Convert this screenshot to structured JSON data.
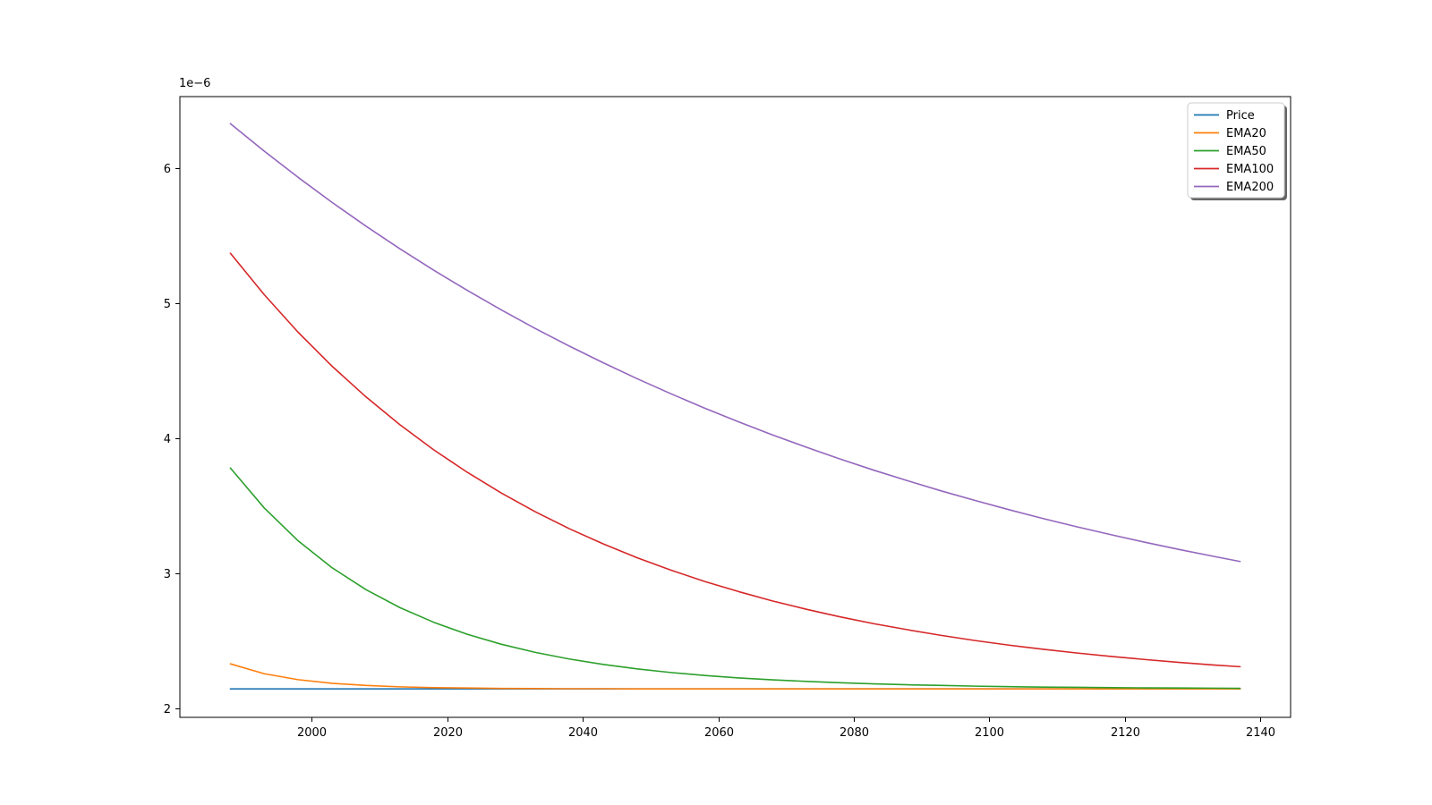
{
  "figure": {
    "background": "#ffffff",
    "axes_facecolor": "#ffffff",
    "spine_color": "#000000",
    "tick_color": "#000000",
    "legend_edge_color": "#cccccc",
    "legend_face_color": "#ffffff",
    "legend_shadow_color": "#666666"
  },
  "chart_data": {
    "type": "line",
    "title": "",
    "xlabel": "",
    "ylabel": "",
    "y_offset_label": "1e−6",
    "y_unit_scale": "1e-6",
    "grid": false,
    "xlim": [
      1980.55,
      2144.45
    ],
    "ylim": [
      1.934,
      6.53
    ],
    "x_ticks": [
      2000,
      2020,
      2040,
      2060,
      2080,
      2100,
      2120,
      2140
    ],
    "x_tick_labels": [
      "2000",
      "2020",
      "2040",
      "2060",
      "2080",
      "2100",
      "2120",
      "2140"
    ],
    "y_ticks": [
      2,
      3,
      4,
      5,
      6
    ],
    "y_tick_labels": [
      "2",
      "3",
      "4",
      "5",
      "6"
    ],
    "legend": {
      "position": "upper right",
      "shadow": true,
      "entries": [
        "Price",
        "EMA20",
        "EMA50",
        "EMA100",
        "EMA200"
      ]
    },
    "x": [
      1988,
      1993,
      1998,
      2003,
      2008,
      2013,
      2018,
      2023,
      2028,
      2033,
      2038,
      2043,
      2048,
      2053,
      2058,
      2063,
      2068,
      2073,
      2078,
      2083,
      2088,
      2093,
      2098,
      2103,
      2108,
      2113,
      2118,
      2123,
      2128,
      2133,
      2137
    ],
    "series": [
      {
        "name": "Price",
        "color": "#1f77b4",
        "values": [
          2.145,
          2.145,
          2.145,
          2.145,
          2.145,
          2.145,
          2.145,
          2.145,
          2.145,
          2.145,
          2.145,
          2.145,
          2.145,
          2.145,
          2.145,
          2.145,
          2.145,
          2.145,
          2.145,
          2.145,
          2.145,
          2.145,
          2.145,
          2.145,
          2.145,
          2.145,
          2.145,
          2.145,
          2.145,
          2.145,
          2.145
        ]
      },
      {
        "name": "EMA20",
        "color": "#ff7f0e",
        "values": [
          2.33,
          2.257,
          2.213,
          2.186,
          2.17,
          2.16,
          2.154,
          2.151,
          2.148,
          2.147,
          2.146,
          2.146,
          2.145,
          2.145,
          2.145,
          2.145,
          2.145,
          2.145,
          2.145,
          2.145,
          2.145,
          2.145,
          2.145,
          2.145,
          2.145,
          2.145,
          2.145,
          2.145,
          2.145,
          2.145,
          2.145
        ]
      },
      {
        "name": "EMA50",
        "color": "#2ca02c",
        "values": [
          3.78,
          3.484,
          3.241,
          3.042,
          2.88,
          2.747,
          2.638,
          2.548,
          2.475,
          2.415,
          2.366,
          2.326,
          2.293,
          2.266,
          2.244,
          2.226,
          2.212,
          2.2,
          2.19,
          2.182,
          2.175,
          2.17,
          2.165,
          2.161,
          2.158,
          2.156,
          2.154,
          2.152,
          2.151,
          2.15,
          2.149
        ]
      },
      {
        "name": "EMA100",
        "color": "#d62728",
        "values": [
          5.37,
          5.063,
          4.785,
          4.534,
          4.307,
          4.101,
          3.915,
          3.747,
          3.594,
          3.456,
          3.331,
          3.219,
          3.116,
          3.024,
          2.94,
          2.865,
          2.796,
          2.734,
          2.678,
          2.627,
          2.582,
          2.54,
          2.502,
          2.468,
          2.438,
          2.41,
          2.385,
          2.362,
          2.341,
          2.322,
          2.309
        ]
      },
      {
        "name": "EMA200",
        "color": "#9467bd",
        "values": [
          6.33,
          6.126,
          5.932,
          5.747,
          5.571,
          5.404,
          5.245,
          5.094,
          4.95,
          4.813,
          4.683,
          4.56,
          4.442,
          4.33,
          4.223,
          4.122,
          4.025,
          3.934,
          3.846,
          3.763,
          3.685,
          3.609,
          3.538,
          3.47,
          3.405,
          3.344,
          3.286,
          3.23,
          3.177,
          3.127,
          3.088
        ]
      }
    ]
  }
}
